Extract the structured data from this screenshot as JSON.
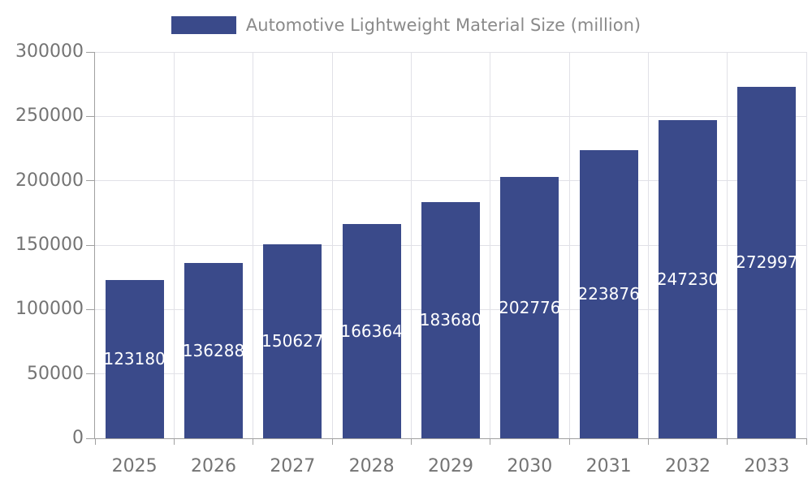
{
  "chart": {
    "legend": {
      "label": "Automotive Lightweight Material Size (million)"
    }
  },
  "chart_data": {
    "type": "bar",
    "title": "Automotive Lightweight Material Size (million)",
    "series_name": "Automotive Lightweight Material Size (million)",
    "categories": [
      "2025",
      "2026",
      "2027",
      "2028",
      "2029",
      "2030",
      "2031",
      "2032",
      "2033"
    ],
    "values": [
      123180,
      136288,
      150627,
      166364,
      183680,
      202776,
      223876,
      247230,
      272997
    ],
    "xlabel": "",
    "ylabel": "",
    "ylim": [
      0,
      300000
    ],
    "ytick_step": 50000,
    "ytick_labels": [
      "0",
      "50000",
      "100000",
      "150000",
      "200000",
      "250000",
      "300000"
    ],
    "grid": true,
    "grid_vertical": true,
    "legend_position": "top-center",
    "value_labels": "inside-center",
    "colors": {
      "bar": "#3A4A8A",
      "bar_label": "#FFFFFF",
      "grid": "#E1E1E7",
      "axis": "#A0A0A0",
      "axis_label": "#747474",
      "legend_text": "#8A8A8A",
      "background": "#FFFFFF"
    }
  }
}
